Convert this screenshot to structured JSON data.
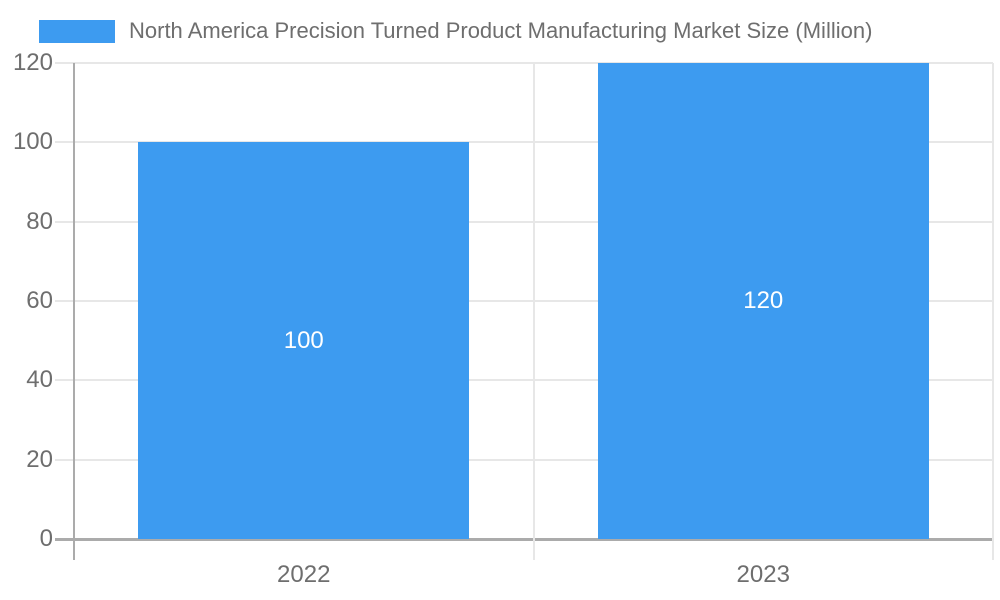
{
  "legend": {
    "label": "North America Precision Turned Product Manufacturing Market Size (Million)"
  },
  "chart_data": {
    "type": "bar",
    "title": "North America Precision Turned Product Manufacturing Market Size (Million)",
    "categories": [
      "2022",
      "2023"
    ],
    "values": [
      100,
      120
    ],
    "series": [
      {
        "name": "North America Precision Turned Product Manufacturing Market Size (Million)",
        "values": [
          100,
          120
        ]
      }
    ],
    "data_labels": [
      "100",
      "120"
    ],
    "xlabel": "",
    "ylabel": "",
    "ylim": [
      0,
      120
    ],
    "yticks": [
      0,
      20,
      40,
      60,
      80,
      100,
      120
    ],
    "ytick_labels": [
      "0",
      "20",
      "40",
      "60",
      "80",
      "100",
      "120"
    ],
    "grid": true,
    "legend_position": "top-left"
  },
  "colors": {
    "bar": "#3d9bf0",
    "grid_line": "#e7e7e7",
    "axis_line": "#ababab",
    "tick_text": "#6e6e6e",
    "value_label_text": "#ffffff",
    "background": "#ffffff"
  }
}
